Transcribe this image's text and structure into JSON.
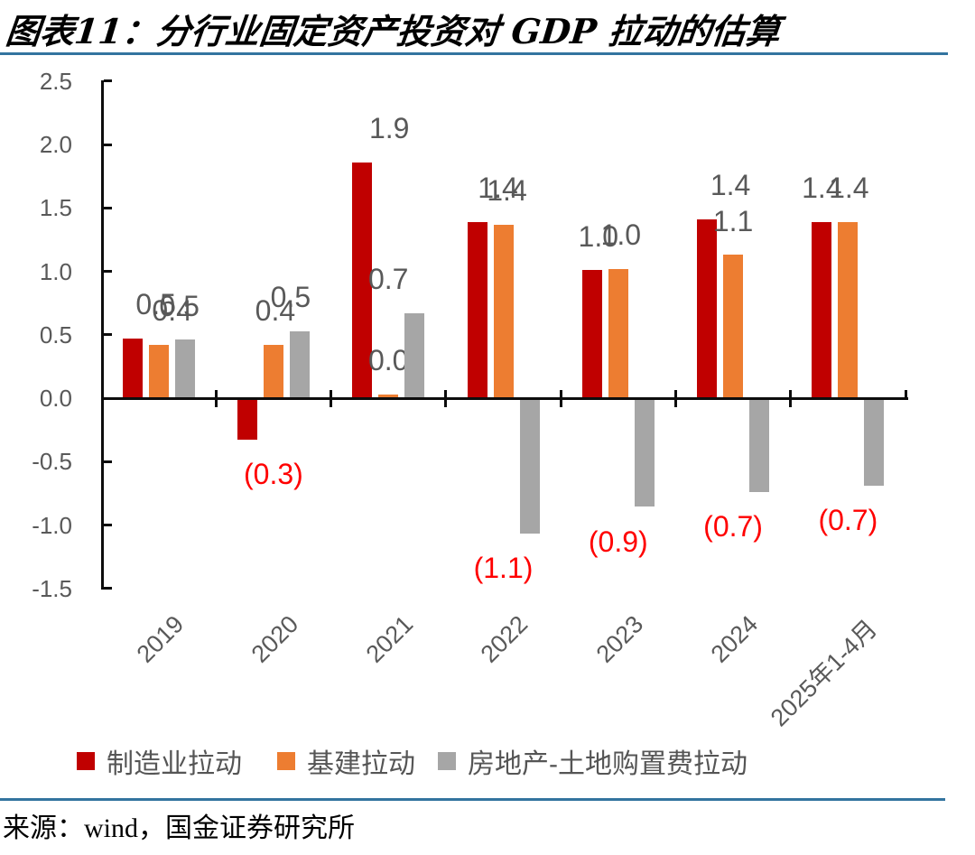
{
  "title": "图表11：分行业固定资产投资对 GDP 拉动的估算",
  "source": "来源：wind，国金证券研究所",
  "colors": {
    "manufacturing": "#C00000",
    "infrastructure": "#ED7D31",
    "realestate": "#A6A6A6",
    "axis": "#0d0d0d",
    "tick_label": "#595959",
    "data_label": "#595959",
    "negative_label": "#FF0000",
    "rule": "#33749F"
  },
  "chart_data": {
    "type": "bar",
    "categories": [
      "2019",
      "2020",
      "2021",
      "2022",
      "2023",
      "2024",
      "2025年1-4月"
    ],
    "series": [
      {
        "name": "制造业拉动",
        "color_key": "manufacturing",
        "values": [
          0.47,
          -0.32,
          1.86,
          1.39,
          1.01,
          1.41,
          1.39
        ],
        "labels": [
          "0.5",
          "(0.3)",
          "1.9",
          "1.4",
          "1.0",
          "1.4",
          "1.4"
        ]
      },
      {
        "name": "基建拉动",
        "color_key": "infrastructure",
        "values": [
          0.42,
          0.42,
          0.03,
          1.37,
          1.02,
          1.13,
          1.39
        ],
        "labels": [
          "0.4",
          "0.4",
          "0.0",
          "1.4",
          "1.0",
          "1.1",
          "1.4"
        ]
      },
      {
        "name": "房地产-土地购置费拉动",
        "color_key": "realestate",
        "values": [
          0.46,
          0.53,
          0.67,
          -1.06,
          -0.85,
          -0.73,
          -0.68
        ],
        "labels": [
          "0.5",
          "0.5",
          "0.7",
          "(1.1)",
          "(0.9)",
          "(0.7)",
          "(0.7)"
        ]
      }
    ],
    "title": "图表11：分行业固定资产投资对 GDP 拉动的估算",
    "xlabel": "",
    "ylabel": "",
    "ylim": [
      -1.5,
      2.5
    ],
    "ytick_step": 0.5,
    "yticks": [
      "2.5",
      "2.0",
      "1.5",
      "1.0",
      "0.5",
      "0.0",
      "-0.5",
      "-1.0",
      "-1.5"
    ],
    "grid": false,
    "legend_position": "bottom",
    "negative_label_style": "red-parentheses"
  }
}
